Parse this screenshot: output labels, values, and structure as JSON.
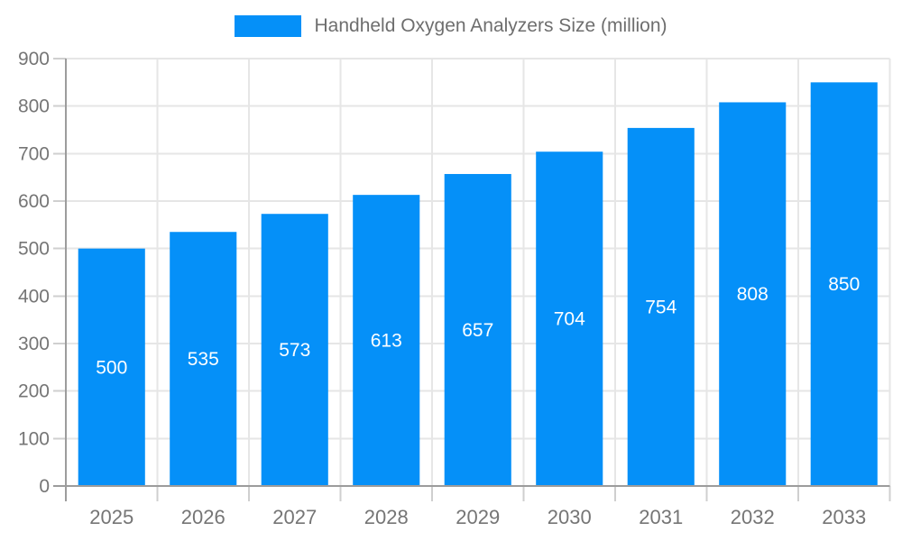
{
  "chart_data": {
    "type": "bar",
    "title": "Handheld Oxygen Analyzers Size (million)",
    "legend_position": "top",
    "categories": [
      "2025",
      "2026",
      "2027",
      "2028",
      "2029",
      "2030",
      "2031",
      "2032",
      "2033"
    ],
    "values": [
      500,
      535,
      573,
      613,
      657,
      704,
      754,
      808,
      850
    ],
    "xlabel": "",
    "ylabel": "",
    "ylim": [
      0,
      900
    ],
    "ytick_step": 100,
    "grid": "on",
    "colors": {
      "bar": "#0590f8",
      "axis_text": "#757575",
      "bar_label": "#ffffff",
      "gridline": "#e6e6e6",
      "tick": "#cfcfcf",
      "axis_line": "#9c9c9c"
    }
  }
}
